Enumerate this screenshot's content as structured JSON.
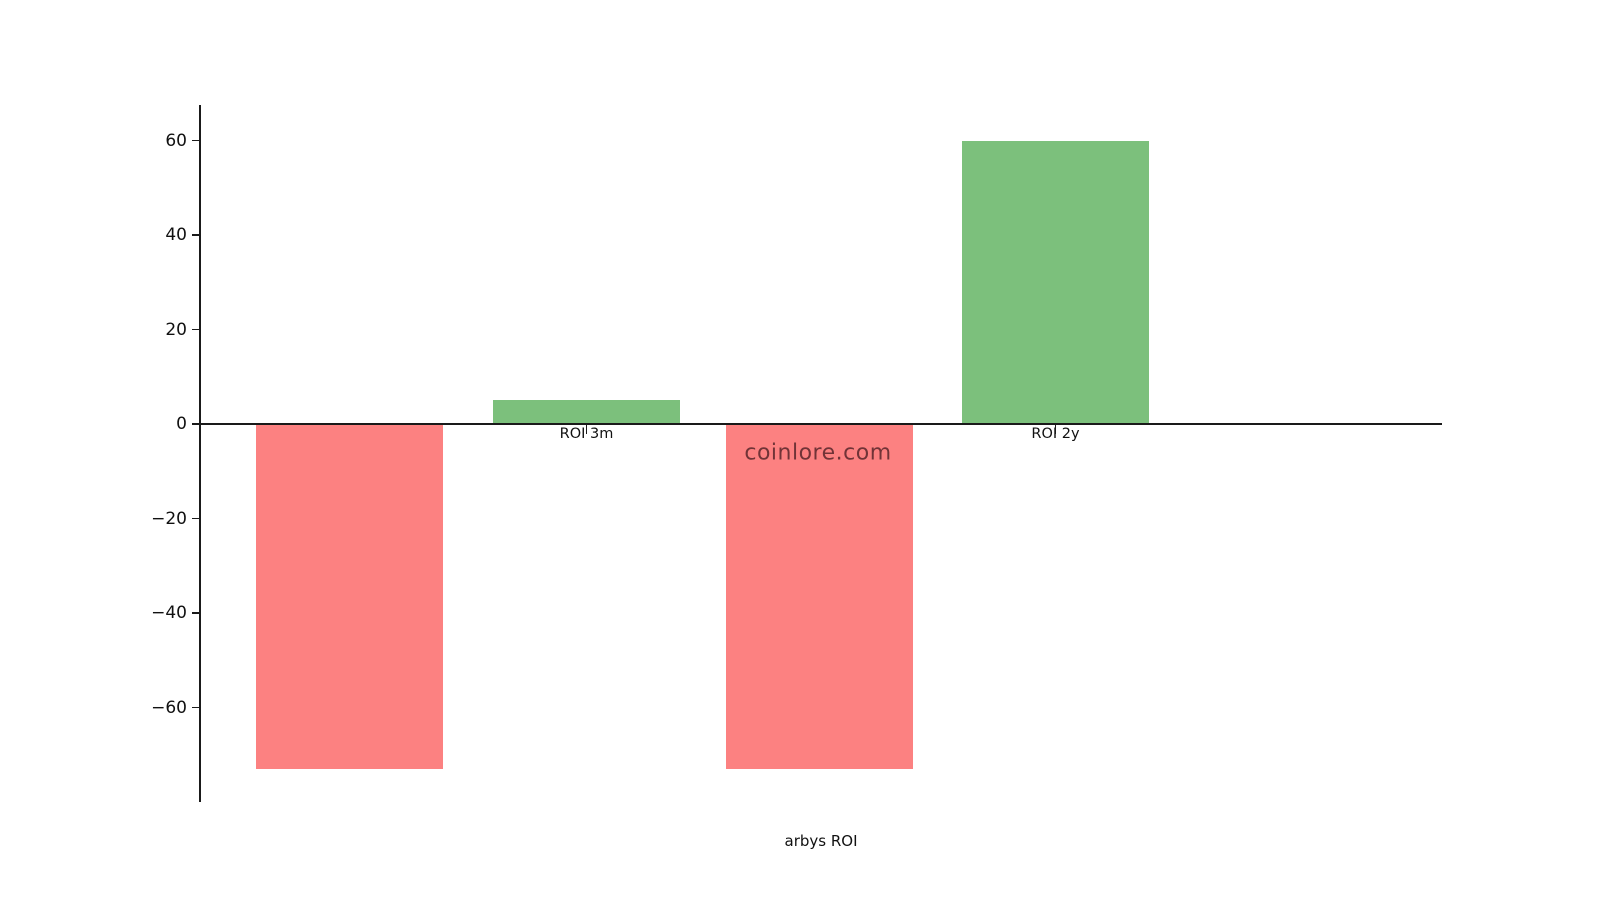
{
  "chart_data": {
    "type": "bar",
    "title": "",
    "xlabel": "arbys ROI",
    "ylabel": "",
    "watermark": "coinlore.com",
    "categories": [
      "",
      "ROI 3m",
      "",
      "ROI 2y"
    ],
    "values": [
      -73,
      5,
      -73,
      60
    ],
    "bar_colors": [
      "#fc8181",
      "#7cc07c",
      "#fc8181",
      "#7cc07c"
    ],
    "colors": {
      "negative_bar": "#fc8181",
      "positive_bar": "#7cc07c",
      "axis": "#1a1a1a",
      "background": "#ffffff"
    },
    "yticks": [
      60,
      40,
      20,
      0,
      -20,
      -40,
      -60
    ],
    "ylim": [
      -80,
      67.5
    ],
    "grid": false,
    "legend": false
  }
}
